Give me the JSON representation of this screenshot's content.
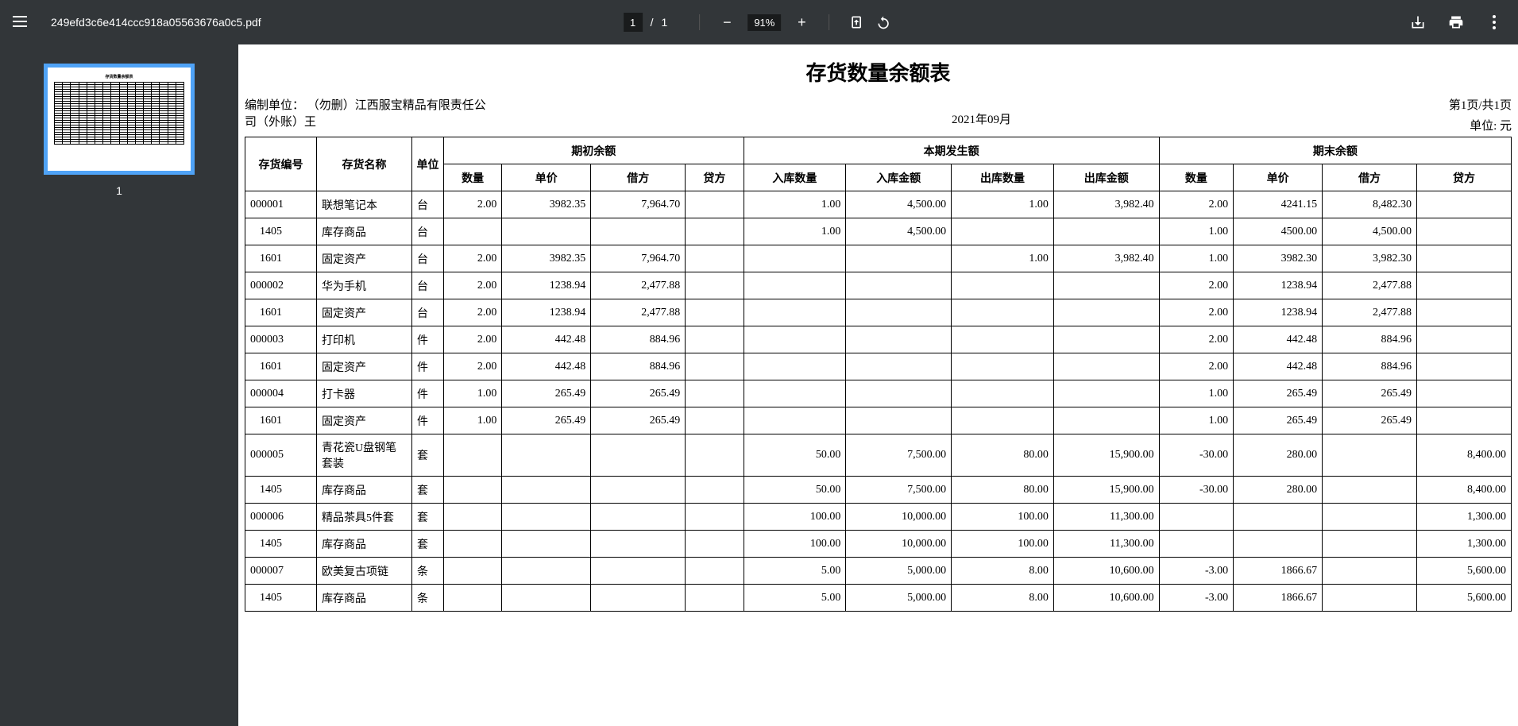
{
  "toolbar": {
    "filename": "249efd3c6e414ccc918a05563676a0c5.pdf",
    "page_current": "1",
    "page_sep": "/",
    "page_total": "1",
    "zoom": "91%"
  },
  "sidebar": {
    "thumb_label": "1"
  },
  "doc": {
    "title": "存货数量余额表",
    "org_label": "编制单位：",
    "org_name1": "（勿删）江西服宝精品有限责任公",
    "org_name2": "司（外账）王",
    "page_info": "第1页/共1页",
    "period": "2021年09月",
    "unit_label": "单位:",
    "unit_value": "元",
    "headers": {
      "h_code": "存货编号",
      "h_name": "存货名称",
      "h_unit": "单位",
      "g_open": "期初余额",
      "g_period": "本期发生额",
      "g_close": "期末余额",
      "qty": "数量",
      "price": "单价",
      "debit": "借方",
      "credit": "贷方",
      "in_qty": "入库数量",
      "in_amt": "入库金额",
      "out_qty": "出库数量",
      "out_amt": "出库金额"
    },
    "rows": [
      {
        "code": "000001",
        "name": "联想笔记本",
        "unit": "台",
        "oq": "2.00",
        "op": "3982.35",
        "od": "7,964.70",
        "oc": "",
        "iq": "1.00",
        "ia": "4,500.00",
        "xq": "1.00",
        "xa": "3,982.40",
        "cq": "2.00",
        "cp": "4241.15",
        "cd": "8,482.30",
        "cc": ""
      },
      {
        "code": "1405",
        "name": "库存商品",
        "unit": "台",
        "oq": "",
        "op": "",
        "od": "",
        "oc": "",
        "iq": "1.00",
        "ia": "4,500.00",
        "xq": "",
        "xa": "",
        "cq": "1.00",
        "cp": "4500.00",
        "cd": "4,500.00",
        "cc": ""
      },
      {
        "code": "1601",
        "name": "固定资产",
        "unit": "台",
        "oq": "2.00",
        "op": "3982.35",
        "od": "7,964.70",
        "oc": "",
        "iq": "",
        "ia": "",
        "xq": "1.00",
        "xa": "3,982.40",
        "cq": "1.00",
        "cp": "3982.30",
        "cd": "3,982.30",
        "cc": ""
      },
      {
        "code": "000002",
        "name": "华为手机",
        "unit": "台",
        "oq": "2.00",
        "op": "1238.94",
        "od": "2,477.88",
        "oc": "",
        "iq": "",
        "ia": "",
        "xq": "",
        "xa": "",
        "cq": "2.00",
        "cp": "1238.94",
        "cd": "2,477.88",
        "cc": ""
      },
      {
        "code": "1601",
        "name": "固定资产",
        "unit": "台",
        "oq": "2.00",
        "op": "1238.94",
        "od": "2,477.88",
        "oc": "",
        "iq": "",
        "ia": "",
        "xq": "",
        "xa": "",
        "cq": "2.00",
        "cp": "1238.94",
        "cd": "2,477.88",
        "cc": ""
      },
      {
        "code": "000003",
        "name": "打印机",
        "unit": "件",
        "oq": "2.00",
        "op": "442.48",
        "od": "884.96",
        "oc": "",
        "iq": "",
        "ia": "",
        "xq": "",
        "xa": "",
        "cq": "2.00",
        "cp": "442.48",
        "cd": "884.96",
        "cc": ""
      },
      {
        "code": "1601",
        "name": "固定资产",
        "unit": "件",
        "oq": "2.00",
        "op": "442.48",
        "od": "884.96",
        "oc": "",
        "iq": "",
        "ia": "",
        "xq": "",
        "xa": "",
        "cq": "2.00",
        "cp": "442.48",
        "cd": "884.96",
        "cc": ""
      },
      {
        "code": "000004",
        "name": "打卡器",
        "unit": "件",
        "oq": "1.00",
        "op": "265.49",
        "od": "265.49",
        "oc": "",
        "iq": "",
        "ia": "",
        "xq": "",
        "xa": "",
        "cq": "1.00",
        "cp": "265.49",
        "cd": "265.49",
        "cc": ""
      },
      {
        "code": "1601",
        "name": "固定资产",
        "unit": "件",
        "oq": "1.00",
        "op": "265.49",
        "od": "265.49",
        "oc": "",
        "iq": "",
        "ia": "",
        "xq": "",
        "xa": "",
        "cq": "1.00",
        "cp": "265.49",
        "cd": "265.49",
        "cc": ""
      },
      {
        "code": "000005",
        "name": "青花瓷U盘钢笔套装",
        "unit": "套",
        "oq": "",
        "op": "",
        "od": "",
        "oc": "",
        "iq": "50.00",
        "ia": "7,500.00",
        "xq": "80.00",
        "xa": "15,900.00",
        "cq": "-30.00",
        "cp": "280.00",
        "cd": "",
        "cc": "8,400.00"
      },
      {
        "code": "1405",
        "name": "库存商品",
        "unit": "套",
        "oq": "",
        "op": "",
        "od": "",
        "oc": "",
        "iq": "50.00",
        "ia": "7,500.00",
        "xq": "80.00",
        "xa": "15,900.00",
        "cq": "-30.00",
        "cp": "280.00",
        "cd": "",
        "cc": "8,400.00"
      },
      {
        "code": "000006",
        "name": "精品茶具5件套",
        "unit": "套",
        "oq": "",
        "op": "",
        "od": "",
        "oc": "",
        "iq": "100.00",
        "ia": "10,000.00",
        "xq": "100.00",
        "xa": "11,300.00",
        "cq": "",
        "cp": "",
        "cd": "",
        "cc": "1,300.00"
      },
      {
        "code": "1405",
        "name": "库存商品",
        "unit": "套",
        "oq": "",
        "op": "",
        "od": "",
        "oc": "",
        "iq": "100.00",
        "ia": "10,000.00",
        "xq": "100.00",
        "xa": "11,300.00",
        "cq": "",
        "cp": "",
        "cd": "",
        "cc": "1,300.00"
      },
      {
        "code": "000007",
        "name": "欧美复古项链",
        "unit": "条",
        "oq": "",
        "op": "",
        "od": "",
        "oc": "",
        "iq": "5.00",
        "ia": "5,000.00",
        "xq": "8.00",
        "xa": "10,600.00",
        "cq": "-3.00",
        "cp": "1866.67",
        "cd": "",
        "cc": "5,600.00"
      },
      {
        "code": "1405",
        "name": "库存商品",
        "unit": "条",
        "oq": "",
        "op": "",
        "od": "",
        "oc": "",
        "iq": "5.00",
        "ia": "5,000.00",
        "xq": "8.00",
        "xa": "10,600.00",
        "cq": "-3.00",
        "cp": "1866.67",
        "cd": "",
        "cc": "5,600.00"
      }
    ]
  }
}
